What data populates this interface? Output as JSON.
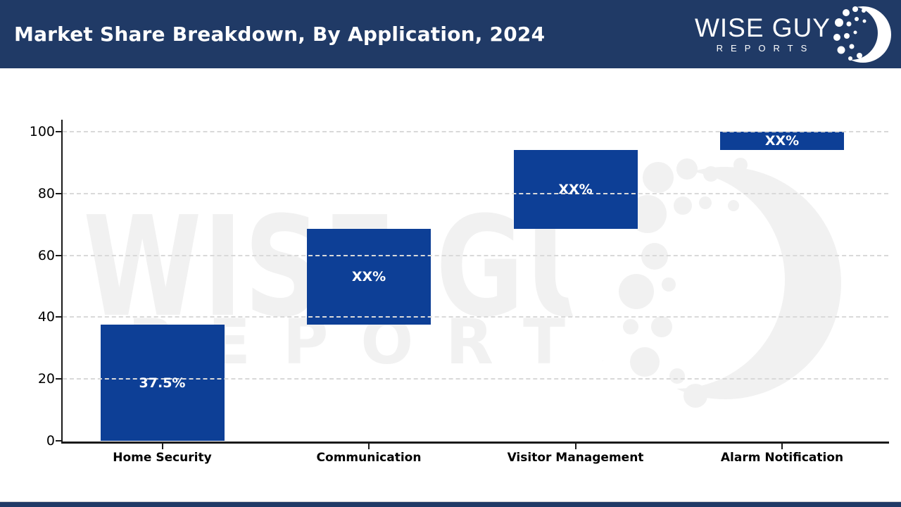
{
  "header": {
    "title": "Market Share Breakdown, By Application, 2024",
    "logo": {
      "primary": "WISE GUY",
      "secondary": "REPORTS"
    }
  },
  "watermark": {
    "primary": "WISE GUY",
    "secondary": "REPORTS"
  },
  "chart_data": {
    "type": "bar",
    "variant": "waterfall",
    "title": "Market Share Breakdown, By Application, 2024",
    "categories": [
      "Home Security",
      "Communication",
      "Visitor Management",
      "Alarm Notification"
    ],
    "segments": [
      {
        "category": "Home Security",
        "start": 0,
        "end": 37.5,
        "label": "37.5%"
      },
      {
        "category": "Communication",
        "start": 37.5,
        "end": 68.5,
        "label": "XX%"
      },
      {
        "category": "Visitor Management",
        "start": 68.5,
        "end": 94,
        "label": "XX%"
      },
      {
        "category": "Alarm Notification",
        "start": 94,
        "end": 100,
        "label": "XX%"
      }
    ],
    "xlabel": "",
    "ylabel": "",
    "ylim": [
      0,
      100
    ],
    "yticks": [
      0,
      20,
      40,
      60,
      80,
      100
    ],
    "grid": "horizontal-dashed",
    "legend": null,
    "bar_color": "#0d3f96",
    "value_label_color": "#ffffff"
  },
  "colors": {
    "header_bg": "#203a66",
    "bar": "#0d3f96",
    "grid": "#d9d9d9",
    "axis": "#1a1a1a",
    "watermark": "#f1f1f1",
    "background": "#ffffff"
  }
}
